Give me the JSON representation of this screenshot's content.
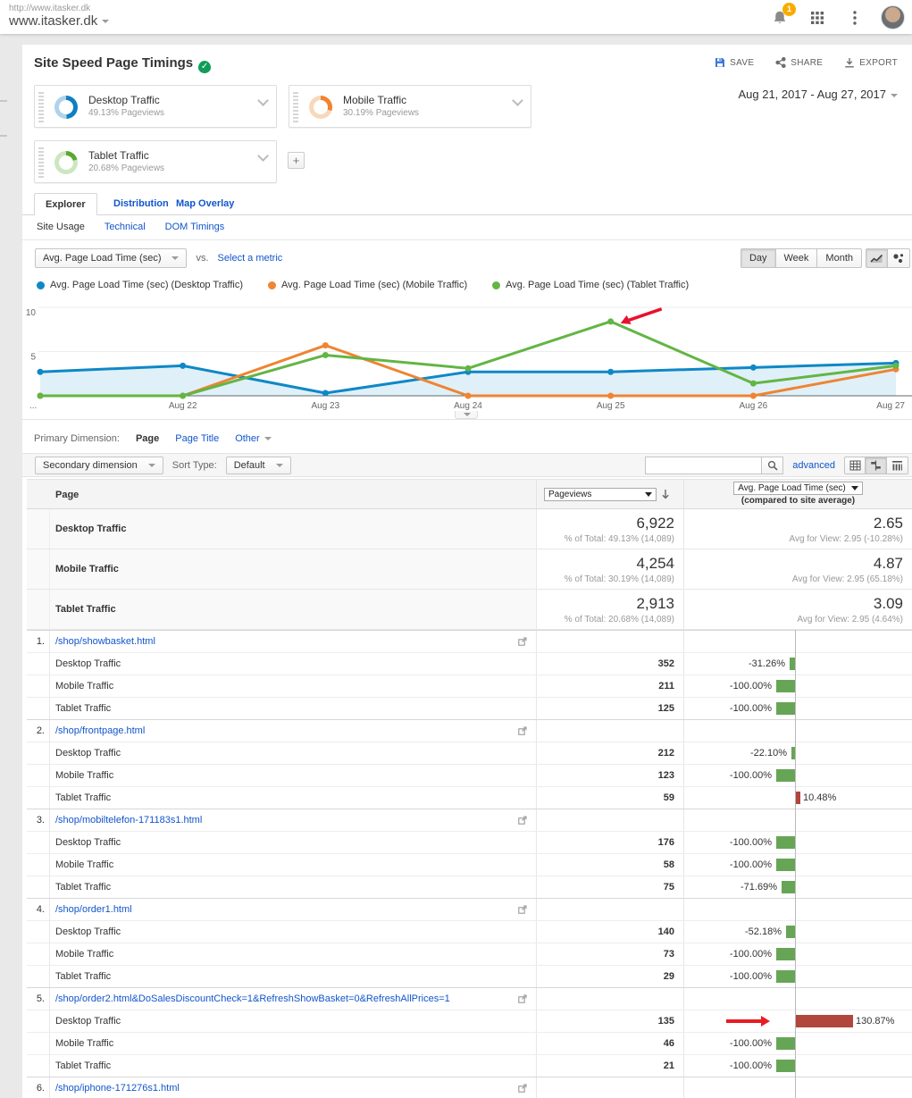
{
  "header": {
    "site_url": "http://www.itasker.dk",
    "site_name": "www.itasker.dk",
    "notification_count": "1"
  },
  "report": {
    "title": "Site Speed Page Timings",
    "save_label": "SAVE",
    "share_label": "SHARE",
    "export_label": "EXPORT",
    "date_range": "Aug 21, 2017 - Aug 27, 2017",
    "add_segment": "+"
  },
  "segments": [
    {
      "name": "Desktop Traffic",
      "detail": "49.13% Pageviews",
      "pct": 49.13,
      "color": "#0e7fc1",
      "color_light": "#aed3ea"
    },
    {
      "name": "Mobile Traffic",
      "detail": "30.19% Pageviews",
      "pct": 30.19,
      "color": "#ef8432",
      "color_light": "#f8d8bb"
    },
    {
      "name": "Tablet Traffic",
      "detail": "20.68% Pageviews",
      "pct": 20.68,
      "color": "#5aa832",
      "color_light": "#cce7bf"
    }
  ],
  "tabs": {
    "explorer": "Explorer",
    "distribution": "Distribution",
    "map_overlay": "Map Overlay"
  },
  "subtabs": {
    "site_usage": "Site Usage",
    "technical": "Technical",
    "dom_timings": "DOM Timings"
  },
  "metric_bar": {
    "metric_dropdown": "Avg. Page Load Time (sec)",
    "vs": "vs.",
    "select_metric": "Select a metric",
    "day": "Day",
    "week": "Week",
    "month": "Month"
  },
  "chart_data": {
    "type": "line",
    "x": [
      "...",
      "Aug 22",
      "Aug 23",
      "Aug 24",
      "Aug 25",
      "Aug 26",
      "Aug 27"
    ],
    "ylim": [
      0,
      10
    ],
    "yticks": [
      5,
      10
    ],
    "grid": true,
    "legend_position": "top",
    "series": [
      {
        "name": "Avg. Page Load Time (sec) (Desktop Traffic)",
        "color": "#0e88c6",
        "area": true,
        "values": [
          2.7,
          3.4,
          0.3,
          2.7,
          2.7,
          3.2,
          3.7
        ]
      },
      {
        "name": "Avg. Page Load Time (sec) (Mobile Traffic)",
        "color": "#ef8432",
        "area": false,
        "values": [
          0,
          0,
          5.7,
          0,
          0,
          0,
          3.0
        ]
      },
      {
        "name": "Avg. Page Load Time (sec) (Tablet Traffic)",
        "color": "#63b544",
        "area": false,
        "values": [
          0,
          0,
          4.6,
          3.1,
          8.4,
          1.4,
          3.4
        ]
      }
    ],
    "annotation": {
      "type": "red-arrow",
      "target_series": 2,
      "target_x": "Aug 25",
      "target_value": 8.4
    }
  },
  "primary_dimension": {
    "label": "Primary Dimension:",
    "page": "Page",
    "page_title": "Page Title",
    "other": "Other"
  },
  "toolbar": {
    "secondary_dimension": "Secondary dimension",
    "sort_type_label": "Sort Type:",
    "sort_default": "Default",
    "search_value": "",
    "advanced": "advanced"
  },
  "table": {
    "columns": {
      "page": "Page",
      "pageviews": "Pageviews",
      "metric": "Avg. Page Load Time (sec)",
      "metric_note": "(compared to site average)"
    },
    "summary_rows": [
      {
        "label": "Desktop Traffic",
        "pageviews": "6,922",
        "pageviews_note": "% of Total: 49.13% (14,089)",
        "value": "2.65",
        "value_note": "Avg for View: 2.95 (-10.28%)"
      },
      {
        "label": "Mobile Traffic",
        "pageviews": "4,254",
        "pageviews_note": "% of Total: 30.19% (14,089)",
        "value": "4.87",
        "value_note": "Avg for View: 2.95 (65.18%)"
      },
      {
        "label": "Tablet Traffic",
        "pageviews": "2,913",
        "pageviews_note": "% of Total: 20.68% (14,089)",
        "value": "3.09",
        "value_note": "Avg for View: 2.95 (4.64%)"
      }
    ],
    "bar_colors": {
      "negative": "#67a556",
      "positive": "#b0463c"
    },
    "groups": [
      {
        "index": "1.",
        "url": "/shop/showbasket.html",
        "rows": [
          {
            "label": "Desktop Traffic",
            "pageviews": "352",
            "delta": -31.26,
            "delta_label": "-31.26%"
          },
          {
            "label": "Mobile Traffic",
            "pageviews": "211",
            "delta": -100.0,
            "delta_label": "-100.00%"
          },
          {
            "label": "Tablet Traffic",
            "pageviews": "125",
            "delta": -100.0,
            "delta_label": "-100.00%"
          }
        ]
      },
      {
        "index": "2.",
        "url": "/shop/frontpage.html",
        "rows": [
          {
            "label": "Desktop Traffic",
            "pageviews": "212",
            "delta": -22.1,
            "delta_label": "-22.10%"
          },
          {
            "label": "Mobile Traffic",
            "pageviews": "123",
            "delta": -100.0,
            "delta_label": "-100.00%"
          },
          {
            "label": "Tablet Traffic",
            "pageviews": "59",
            "delta": 10.48,
            "delta_label": "10.48%"
          }
        ]
      },
      {
        "index": "3.",
        "url": "/shop/mobiltelefon-171183s1.html",
        "rows": [
          {
            "label": "Desktop Traffic",
            "pageviews": "176",
            "delta": -100.0,
            "delta_label": "-100.00%"
          },
          {
            "label": "Mobile Traffic",
            "pageviews": "58",
            "delta": -100.0,
            "delta_label": "-100.00%"
          },
          {
            "label": "Tablet Traffic",
            "pageviews": "75",
            "delta": -71.69,
            "delta_label": "-71.69%"
          }
        ]
      },
      {
        "index": "4.",
        "url": "/shop/order1.html",
        "rows": [
          {
            "label": "Desktop Traffic",
            "pageviews": "140",
            "delta": -52.18,
            "delta_label": "-52.18%"
          },
          {
            "label": "Mobile Traffic",
            "pageviews": "73",
            "delta": -100.0,
            "delta_label": "-100.00%"
          },
          {
            "label": "Tablet Traffic",
            "pageviews": "29",
            "delta": -100.0,
            "delta_label": "-100.00%"
          }
        ]
      },
      {
        "index": "5.",
        "url": "/shop/order2.html&DoSalesDiscountCheck=1&RefreshShowBasket=0&RefreshAllPrices=1",
        "rows": [
          {
            "label": "Desktop Traffic",
            "pageviews": "135",
            "delta": 130.87,
            "delta_label": "130.87%",
            "arrow": true
          },
          {
            "label": "Mobile Traffic",
            "pageviews": "46",
            "delta": -100.0,
            "delta_label": "-100.00%"
          },
          {
            "label": "Tablet Traffic",
            "pageviews": "21",
            "delta": -100.0,
            "delta_label": "-100.00%"
          }
        ]
      },
      {
        "index": "6.",
        "url": "/shop/iphone-171276s1.html",
        "rows": []
      }
    ]
  }
}
